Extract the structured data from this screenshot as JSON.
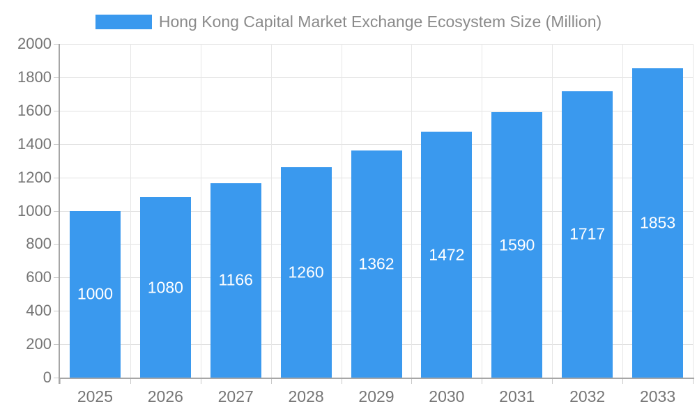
{
  "legend": {
    "label": "Hong Kong Capital Market Exchange Ecosystem Size (Million)"
  },
  "chart_data": {
    "type": "bar",
    "title": "Hong Kong Capital Market Exchange Ecosystem Size (Million)",
    "series_name": "Hong Kong Capital Market Exchange Ecosystem Size (Million)",
    "categories": [
      "2025",
      "2026",
      "2027",
      "2028",
      "2029",
      "2030",
      "2031",
      "2032",
      "2033"
    ],
    "values": [
      1000,
      1080,
      1166,
      1260,
      1362,
      1472,
      1590,
      1717,
      1853
    ],
    "xlabel": "",
    "ylabel": "",
    "ylim": [
      0,
      2000
    ],
    "ytick_step": 200,
    "yticks": [
      0,
      200,
      400,
      600,
      800,
      1000,
      1200,
      1400,
      1600,
      1800,
      2000
    ],
    "grid": true,
    "legend_position": "top-center",
    "bar_labels_position": "inside-center"
  },
  "colors": {
    "bar": "#3A99EE",
    "bar_label": "#FFFFFF",
    "grid_h": "#E1E1E1",
    "grid_v": "#E7E7E7",
    "axis_line": "#A6A6A6",
    "tick": "#C9C9C9",
    "axis_text": "#757575",
    "title_text": "#8A8A8A",
    "background": "#FFFFFF"
  }
}
